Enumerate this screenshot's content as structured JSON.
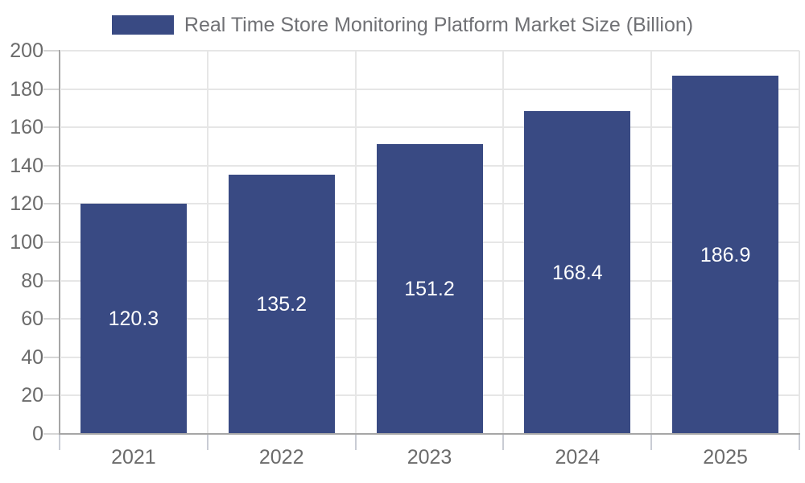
{
  "chart_data": {
    "type": "bar",
    "title": "Real Time Store Monitoring Platform Market Size (Billion)",
    "categories": [
      "2021",
      "2022",
      "2023",
      "2024",
      "2025"
    ],
    "values": [
      120.3,
      135.2,
      151.2,
      168.4,
      186.9
    ],
    "value_labels": [
      "120.3",
      "135.2",
      "151.2",
      "168.4",
      "186.9"
    ],
    "series_name": "Real Time Store Monitoring Platform Market Size (Billion)",
    "xlabel": "",
    "ylabel": "",
    "ylim": [
      0,
      200
    ],
    "yticks": [
      0,
      20,
      40,
      60,
      80,
      100,
      120,
      140,
      160,
      180,
      200
    ],
    "ytick_labels": [
      "0",
      "20",
      "40",
      "60",
      "80",
      "100",
      "120",
      "140",
      "160",
      "180",
      "200"
    ],
    "grid": true,
    "legend_position": "top",
    "value_label_position": "center-of-bar",
    "colors": {
      "bar": "#394a83",
      "value_label": "#ffffff",
      "axis_text": "#6b6b6b",
      "legend_text": "#707175",
      "gridline": "#e6e6e6",
      "axis_border": "#a6a6a6",
      "y_tick_mark": "#d6d6d6",
      "x_tick_mark": "#c9ccd4",
      "background": "#ffffff"
    }
  }
}
